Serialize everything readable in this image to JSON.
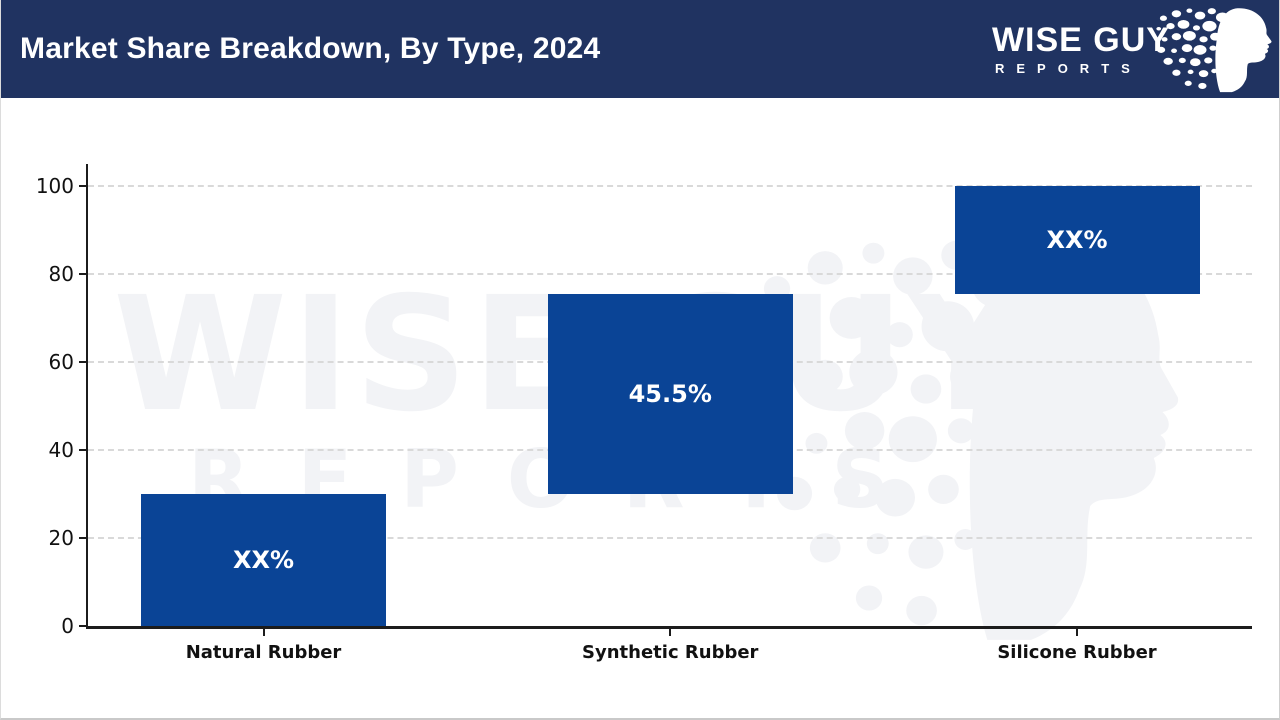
{
  "header": {
    "title": "Market Share Breakdown, By Type, 2024",
    "logo": {
      "name": "WISE GUY",
      "subname": "REPORTS"
    }
  },
  "watermark": {
    "wordmark": "WISE GUY",
    "reports": "REPORTS"
  },
  "chart_data": {
    "type": "bar",
    "subtype": "waterfall",
    "title": "Market Share Breakdown, By Type, 2024",
    "categories": [
      "Natural Rubber",
      "Synthetic Rubber",
      "Silicone Rubber"
    ],
    "segments": [
      {
        "category": "Natural Rubber",
        "start": 0,
        "end": 30,
        "label": "XX%"
      },
      {
        "category": "Synthetic Rubber",
        "start": 30,
        "end": 75.5,
        "label": "45.5%"
      },
      {
        "category": "Silicone Rubber",
        "start": 75.5,
        "end": 100,
        "label": "XX%"
      }
    ],
    "xlabel": "",
    "ylabel": "",
    "ylim": [
      0,
      105
    ],
    "yticks": [
      0,
      20,
      40,
      60,
      80,
      100
    ],
    "grid": "horizontal-dashed",
    "legend": "none",
    "bar_color": "#0a4496",
    "bar_label_color": "#ffffff",
    "axis_color": "#1c1c1c",
    "grid_color": "#d9d9d9"
  },
  "colors": {
    "header_bg": "#203361",
    "watermark": "#f2f3f6"
  }
}
